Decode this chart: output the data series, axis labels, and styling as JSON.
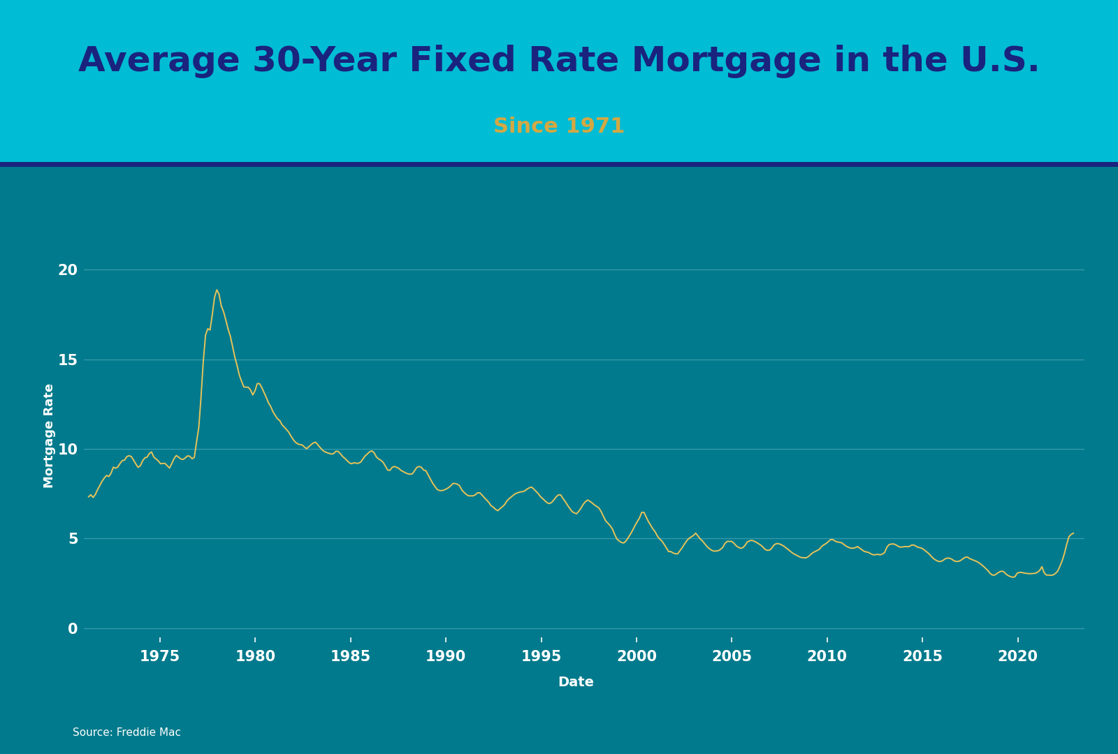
{
  "title": "Average 30-Year Fixed Rate Mortgage in the U.S.",
  "subtitle": "Since 1971",
  "xlabel": "Date",
  "ylabel": "Mortgage Rate",
  "source": "Source: Freddie Mac",
  "bg_top": "#00BCD4",
  "bg_chart": "#007A8C",
  "title_color": "#1A237E",
  "subtitle_color": "#D4A843",
  "line_color": "#E8C35A",
  "axis_text_color": "#FFFFFF",
  "grid_color": "#3A9BAD",
  "tick_color": "#FFFFFF",
  "separator_color": "#1A237E",
  "yticks": [
    0,
    5,
    10,
    15,
    20
  ],
  "xtick_years": [
    1975,
    1980,
    1985,
    1990,
    1995,
    2000,
    2005,
    2010,
    2015,
    2020
  ],
  "ylim": [
    -0.5,
    22
  ],
  "xlim_start": 1971.0,
  "xlim_end": 2023.5,
  "rates": [
    7.33,
    7.44,
    7.29,
    7.46,
    7.73,
    7.96,
    8.2,
    8.38,
    8.52,
    8.46,
    8.65,
    8.98,
    8.92,
    8.99,
    9.19,
    9.35,
    9.37,
    9.57,
    9.62,
    9.57,
    9.37,
    9.16,
    8.97,
    9.06,
    9.33,
    9.5,
    9.54,
    9.74,
    9.83,
    9.54,
    9.44,
    9.33,
    9.17,
    9.19,
    9.19,
    9.06,
    8.93,
    9.19,
    9.46,
    9.63,
    9.54,
    9.44,
    9.41,
    9.5,
    9.61,
    9.59,
    9.45,
    9.52,
    10.38,
    11.2,
    12.9,
    14.88,
    16.35,
    16.7,
    16.63,
    17.48,
    18.45,
    18.87,
    18.63,
    17.98,
    17.66,
    17.2,
    16.7,
    16.3,
    15.73,
    15.13,
    14.67,
    14.13,
    13.78,
    13.46,
    13.44,
    13.44,
    13.29,
    13.01,
    13.24,
    13.64,
    13.64,
    13.43,
    13.15,
    12.87,
    12.57,
    12.36,
    12.07,
    11.87,
    11.68,
    11.58,
    11.35,
    11.22,
    11.08,
    10.93,
    10.72,
    10.52,
    10.37,
    10.28,
    10.24,
    10.22,
    10.1,
    10.01,
    10.13,
    10.24,
    10.34,
    10.37,
    10.22,
    10.07,
    9.93,
    9.84,
    9.79,
    9.75,
    9.71,
    9.74,
    9.87,
    9.86,
    9.73,
    9.57,
    9.47,
    9.34,
    9.22,
    9.17,
    9.23,
    9.2,
    9.2,
    9.26,
    9.44,
    9.61,
    9.72,
    9.84,
    9.89,
    9.78,
    9.55,
    9.44,
    9.36,
    9.25,
    9.04,
    8.82,
    8.8,
    8.97,
    9.02,
    8.97,
    8.91,
    8.79,
    8.73,
    8.66,
    8.61,
    8.59,
    8.61,
    8.79,
    8.97,
    9.02,
    8.97,
    8.82,
    8.78,
    8.55,
    8.32,
    8.09,
    7.91,
    7.74,
    7.68,
    7.67,
    7.7,
    7.76,
    7.83,
    7.93,
    8.07,
    8.07,
    8.03,
    7.94,
    7.71,
    7.57,
    7.46,
    7.38,
    7.38,
    7.38,
    7.44,
    7.55,
    7.55,
    7.42,
    7.28,
    7.15,
    7.01,
    6.83,
    6.75,
    6.63,
    6.55,
    6.67,
    6.77,
    6.89,
    7.09,
    7.22,
    7.32,
    7.43,
    7.51,
    7.56,
    7.6,
    7.61,
    7.66,
    7.76,
    7.83,
    7.87,
    7.76,
    7.63,
    7.5,
    7.33,
    7.22,
    7.1,
    6.99,
    6.95,
    7.02,
    7.17,
    7.33,
    7.44,
    7.43,
    7.23,
    7.06,
    6.86,
    6.68,
    6.51,
    6.43,
    6.38,
    6.52,
    6.7,
    6.91,
    7.06,
    7.15,
    7.07,
    6.98,
    6.87,
    6.79,
    6.7,
    6.49,
    6.23,
    5.98,
    5.85,
    5.71,
    5.53,
    5.22,
    4.97,
    4.86,
    4.78,
    4.75,
    4.86,
    5.05,
    5.25,
    5.47,
    5.72,
    5.94,
    6.14,
    6.46,
    6.46,
    6.2,
    5.94,
    5.74,
    5.53,
    5.37,
    5.13,
    4.97,
    4.86,
    4.67,
    4.47,
    4.27,
    4.27,
    4.19,
    4.15,
    4.15,
    4.32,
    4.49,
    4.69,
    4.87,
    5.01,
    5.09,
    5.17,
    5.3,
    5.14,
    4.98,
    4.87,
    4.71,
    4.56,
    4.44,
    4.35,
    4.3,
    4.3,
    4.32,
    4.39,
    4.5,
    4.72,
    4.84,
    4.84,
    4.84,
    4.74,
    4.6,
    4.51,
    4.46,
    4.49,
    4.63,
    4.81,
    4.87,
    4.9,
    4.85,
    4.79,
    4.71,
    4.63,
    4.51,
    4.38,
    4.34,
    4.36,
    4.49,
    4.66,
    4.72,
    4.71,
    4.66,
    4.59,
    4.5,
    4.4,
    4.3,
    4.2,
    4.12,
    4.06,
    3.99,
    3.94,
    3.93,
    3.92,
    3.98,
    4.09,
    4.2,
    4.27,
    4.33,
    4.4,
    4.55,
    4.65,
    4.72,
    4.83,
    4.94,
    4.94,
    4.86,
    4.81,
    4.79,
    4.76,
    4.66,
    4.57,
    4.51,
    4.46,
    4.46,
    4.49,
    4.55,
    4.46,
    4.37,
    4.28,
    4.25,
    4.22,
    4.14,
    4.09,
    4.1,
    4.12,
    4.09,
    4.13,
    4.21,
    4.51,
    4.66,
    4.69,
    4.7,
    4.65,
    4.57,
    4.52,
    4.53,
    4.55,
    4.55,
    4.55,
    4.63,
    4.64,
    4.57,
    4.51,
    4.48,
    4.43,
    4.33,
    4.23,
    4.12,
    3.97,
    3.86,
    3.78,
    3.72,
    3.72,
    3.78,
    3.87,
    3.91,
    3.9,
    3.84,
    3.75,
    3.72,
    3.73,
    3.79,
    3.88,
    3.96,
    3.96,
    3.87,
    3.82,
    3.77,
    3.72,
    3.65,
    3.55,
    3.45,
    3.33,
    3.21,
    3.05,
    2.96,
    2.96,
    3.05,
    3.13,
    3.18,
    3.15,
    3.02,
    2.93,
    2.88,
    2.84,
    2.87,
    3.07,
    3.11,
    3.11,
    3.08,
    3.06,
    3.04,
    3.04,
    3.05,
    3.06,
    3.12,
    3.22,
    3.43,
    3.09,
    2.96,
    2.96,
    2.95,
    2.97,
    3.05,
    3.18,
    3.45,
    3.76,
    4.16,
    4.67,
    5.1,
    5.23,
    5.3
  ]
}
